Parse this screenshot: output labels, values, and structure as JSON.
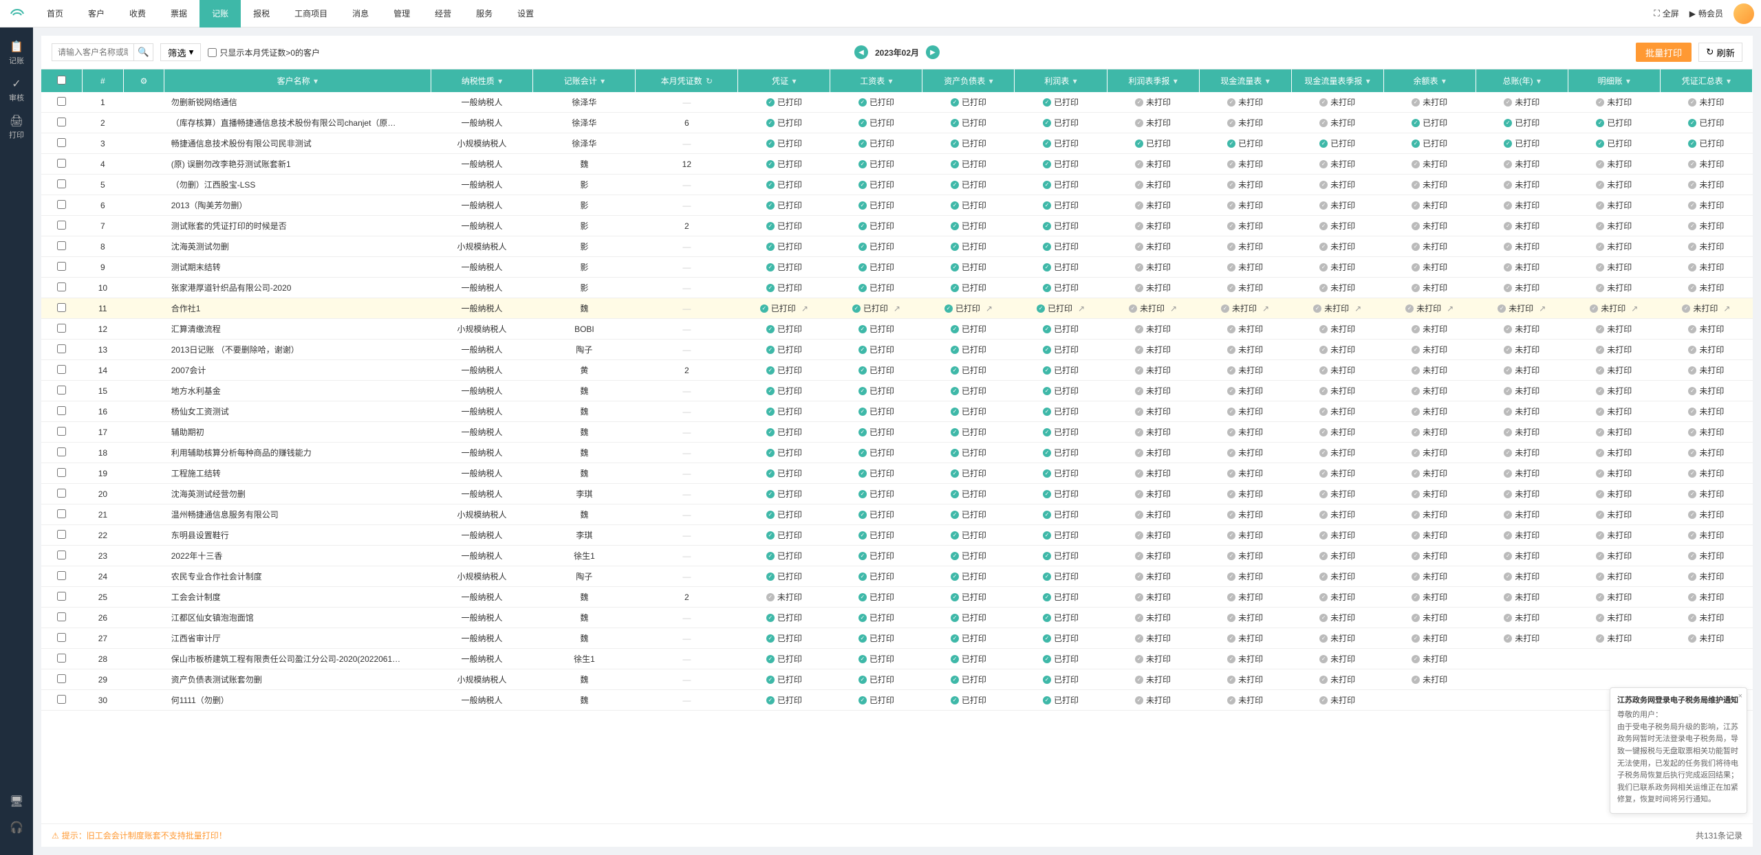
{
  "nav": {
    "items": [
      "首页",
      "客户",
      "收费",
      "票据",
      "记账",
      "报税",
      "工商项目",
      "消息",
      "管理",
      "经营",
      "服务",
      "设置"
    ],
    "active": 4,
    "fullscreen": "全屏",
    "member": "畅会员"
  },
  "sidebar": {
    "items": [
      {
        "icon": "📋",
        "label": "记账"
      },
      {
        "icon": "✓",
        "label": "审核"
      },
      {
        "icon": "🖨",
        "label": "打印"
      }
    ]
  },
  "toolbar": {
    "search_placeholder": "请输入客户名称或助记码",
    "filter_label": "筛选",
    "checkbox_label": "只显示本月凭证数>0的客户",
    "date": "2023年02月",
    "batch_print": "批量打印",
    "refresh": "刷新"
  },
  "columns": [
    "",
    "#",
    "",
    "客户名称",
    "纳税性质",
    "记账会计",
    "本月凭证数",
    "凭证",
    "工资表",
    "资产负债表",
    "利润表",
    "利润表季报",
    "现金流量表",
    "现金流量表季报",
    "余额表",
    "总账(年)",
    "明细账",
    "凭证汇总表"
  ],
  "status_printed": "已打印",
  "status_unprinted": "未打印",
  "rows": [
    {
      "idx": 1,
      "name": "勿删新锐网络通信",
      "tax": "一般纳税人",
      "acct": "徐泽华",
      "vcount": "",
      "printed": [
        1,
        1,
        1,
        1,
        0,
        0,
        0,
        0,
        0,
        0,
        0
      ]
    },
    {
      "idx": 2,
      "name": "（库存核算）直播畅捷通信息技术股份有限公司chanjet（原…",
      "tax": "一般纳税人",
      "acct": "徐泽华",
      "vcount": "6",
      "printed": [
        1,
        1,
        1,
        1,
        0,
        0,
        0,
        1,
        1,
        1,
        1
      ]
    },
    {
      "idx": 3,
      "name": "畅捷通信息技术股份有限公司民非测试",
      "tax": "小规模纳税人",
      "acct": "徐泽华",
      "vcount": "",
      "printed": [
        1,
        1,
        1,
        1,
        1,
        1,
        1,
        1,
        1,
        1,
        1
      ]
    },
    {
      "idx": 4,
      "name": "(原) 误删勿改李艳芬测试账套新1",
      "tax": "一般纳税人",
      "acct": "魏",
      "vcount": "12",
      "printed": [
        1,
        1,
        1,
        1,
        0,
        0,
        0,
        0,
        0,
        0,
        0
      ]
    },
    {
      "idx": 5,
      "name": "（勿删）江西股宝-LSS",
      "tax": "一般纳税人",
      "acct": "影",
      "vcount": "",
      "printed": [
        1,
        1,
        1,
        1,
        0,
        0,
        0,
        0,
        0,
        0,
        0
      ]
    },
    {
      "idx": 6,
      "name": "2013（陶美芳勿删）",
      "tax": "一般纳税人",
      "acct": "影",
      "vcount": "",
      "printed": [
        1,
        1,
        1,
        1,
        0,
        0,
        0,
        0,
        0,
        0,
        0
      ]
    },
    {
      "idx": 7,
      "name": "测试账套的凭证打印的时候是否",
      "tax": "一般纳税人",
      "acct": "影",
      "vcount": "2",
      "printed": [
        1,
        1,
        1,
        1,
        0,
        0,
        0,
        0,
        0,
        0,
        0
      ]
    },
    {
      "idx": 8,
      "name": "沈海英测试勿删",
      "tax": "小规模纳税人",
      "acct": "影",
      "vcount": "",
      "printed": [
        1,
        1,
        1,
        1,
        0,
        0,
        0,
        0,
        0,
        0,
        0
      ]
    },
    {
      "idx": 9,
      "name": "测试期末结转",
      "tax": "一般纳税人",
      "acct": "影",
      "vcount": "",
      "printed": [
        1,
        1,
        1,
        1,
        0,
        0,
        0,
        0,
        0,
        0,
        0
      ]
    },
    {
      "idx": 10,
      "name": "张家港厚道针织品有限公司-2020",
      "tax": "一般纳税人",
      "acct": "影",
      "vcount": "",
      "printed": [
        1,
        1,
        1,
        1,
        0,
        0,
        0,
        0,
        0,
        0,
        0
      ]
    },
    {
      "idx": 11,
      "name": "合作社1",
      "tax": "一般纳税人",
      "acct": "魏",
      "vcount": "",
      "printed": [
        1,
        1,
        1,
        1,
        0,
        0,
        0,
        0,
        0,
        0,
        0
      ],
      "highlighted": true,
      "hasLink": true
    },
    {
      "idx": 12,
      "name": "汇算清缴流程",
      "tax": "小规模纳税人",
      "acct": "BOBI",
      "vcount": "",
      "printed": [
        1,
        1,
        1,
        1,
        0,
        0,
        0,
        0,
        0,
        0,
        0
      ]
    },
    {
      "idx": 13,
      "name": "2013日记账 （不要删除哈，谢谢）",
      "tax": "一般纳税人",
      "acct": "陶子",
      "vcount": "",
      "printed": [
        1,
        1,
        1,
        1,
        0,
        0,
        0,
        0,
        0,
        0,
        0
      ]
    },
    {
      "idx": 14,
      "name": "2007会计",
      "tax": "一般纳税人",
      "acct": "黄",
      "vcount": "2",
      "printed": [
        1,
        1,
        1,
        1,
        0,
        0,
        0,
        0,
        0,
        0,
        0
      ]
    },
    {
      "idx": 15,
      "name": "地方水利基金",
      "tax": "一般纳税人",
      "acct": "魏",
      "vcount": "",
      "printed": [
        1,
        1,
        1,
        1,
        0,
        0,
        0,
        0,
        0,
        0,
        0
      ]
    },
    {
      "idx": 16,
      "name": "杨仙女工资测试",
      "tax": "一般纳税人",
      "acct": "魏",
      "vcount": "",
      "printed": [
        1,
        1,
        1,
        1,
        0,
        0,
        0,
        0,
        0,
        0,
        0
      ]
    },
    {
      "idx": 17,
      "name": "辅助期初",
      "tax": "一般纳税人",
      "acct": "魏",
      "vcount": "",
      "printed": [
        1,
        1,
        1,
        1,
        0,
        0,
        0,
        0,
        0,
        0,
        0
      ]
    },
    {
      "idx": 18,
      "name": "利用辅助核算分析每种商品的赚钱能力",
      "tax": "一般纳税人",
      "acct": "魏",
      "vcount": "",
      "printed": [
        1,
        1,
        1,
        1,
        0,
        0,
        0,
        0,
        0,
        0,
        0
      ]
    },
    {
      "idx": 19,
      "name": "工程施工结转",
      "tax": "一般纳税人",
      "acct": "魏",
      "vcount": "",
      "printed": [
        1,
        1,
        1,
        1,
        0,
        0,
        0,
        0,
        0,
        0,
        0
      ]
    },
    {
      "idx": 20,
      "name": "沈海英测试经营勿删",
      "tax": "一般纳税人",
      "acct": "李琪",
      "vcount": "",
      "printed": [
        1,
        1,
        1,
        1,
        0,
        0,
        0,
        0,
        0,
        0,
        0
      ]
    },
    {
      "idx": 21,
      "name": "温州畅捷通信息服务有限公司",
      "tax": "小规模纳税人",
      "acct": "魏",
      "vcount": "",
      "printed": [
        1,
        1,
        1,
        1,
        0,
        0,
        0,
        0,
        0,
        0,
        0
      ]
    },
    {
      "idx": 22,
      "name": "东明县设置鞋行",
      "tax": "一般纳税人",
      "acct": "李琪",
      "vcount": "",
      "printed": [
        1,
        1,
        1,
        1,
        0,
        0,
        0,
        0,
        0,
        0,
        0
      ]
    },
    {
      "idx": 23,
      "name": "2022年十三香",
      "tax": "一般纳税人",
      "acct": "徐生1",
      "vcount": "",
      "printed": [
        1,
        1,
        1,
        1,
        0,
        0,
        0,
        0,
        0,
        0,
        0
      ]
    },
    {
      "idx": 24,
      "name": "农民专业合作社会计制度",
      "tax": "小规模纳税人",
      "acct": "陶子",
      "vcount": "",
      "printed": [
        1,
        1,
        1,
        1,
        0,
        0,
        0,
        0,
        0,
        0,
        0
      ]
    },
    {
      "idx": 25,
      "name": "工会会计制度",
      "tax": "一般纳税人",
      "acct": "魏",
      "vcount": "2",
      "printed": [
        0,
        1,
        1,
        1,
        0,
        0,
        0,
        0,
        0,
        0,
        0
      ]
    },
    {
      "idx": 26,
      "name": "江都区仙女镇泡泡面馆",
      "tax": "一般纳税人",
      "acct": "魏",
      "vcount": "",
      "printed": [
        1,
        1,
        1,
        1,
        0,
        0,
        0,
        0,
        0,
        0,
        0
      ]
    },
    {
      "idx": 27,
      "name": "江西省审计厅",
      "tax": "一般纳税人",
      "acct": "魏",
      "vcount": "",
      "printed": [
        1,
        1,
        1,
        1,
        0,
        0,
        0,
        0,
        0,
        0,
        0
      ]
    },
    {
      "idx": 28,
      "name": "保山市板桥建筑工程有限责任公司盈江分公司-2020(2022061…",
      "tax": "一般纳税人",
      "acct": "徐生1",
      "vcount": "",
      "printed": [
        1,
        1,
        1,
        1,
        0,
        0,
        0,
        0,
        0,
        0,
        0
      ],
      "short": 8
    },
    {
      "idx": 29,
      "name": "资产负债表测试账套勿删",
      "tax": "小规模纳税人",
      "acct": "魏",
      "vcount": "",
      "printed": [
        1,
        1,
        1,
        1,
        0,
        0,
        0,
        0,
        0,
        0,
        0
      ],
      "short": 8
    },
    {
      "idx": 30,
      "name": "何1111（勿删）",
      "tax": "一般纳税人",
      "acct": "魏",
      "vcount": "",
      "printed": [
        1,
        1,
        1,
        1,
        0,
        0,
        0,
        0,
        0,
        0,
        0
      ],
      "short": 7
    }
  ],
  "footer": {
    "warning": "提示：旧工会会计制度账套不支持批量打印！",
    "count": "共131条记录"
  },
  "toast": {
    "title": "江苏政务网登录电子税务局维护通知",
    "greeting": "尊敬的用户：",
    "body": "由于受电子税务局升级的影响，江苏政务网暂时无法登录电子税务局，导致一键报税与无盘取票相关功能暂时无法使用，已发起的任务我们将待电子税务局恢复后执行完成返回结果；我们已联系政务网相关运维正在加紧修复，恢复时间将另行通知。"
  }
}
